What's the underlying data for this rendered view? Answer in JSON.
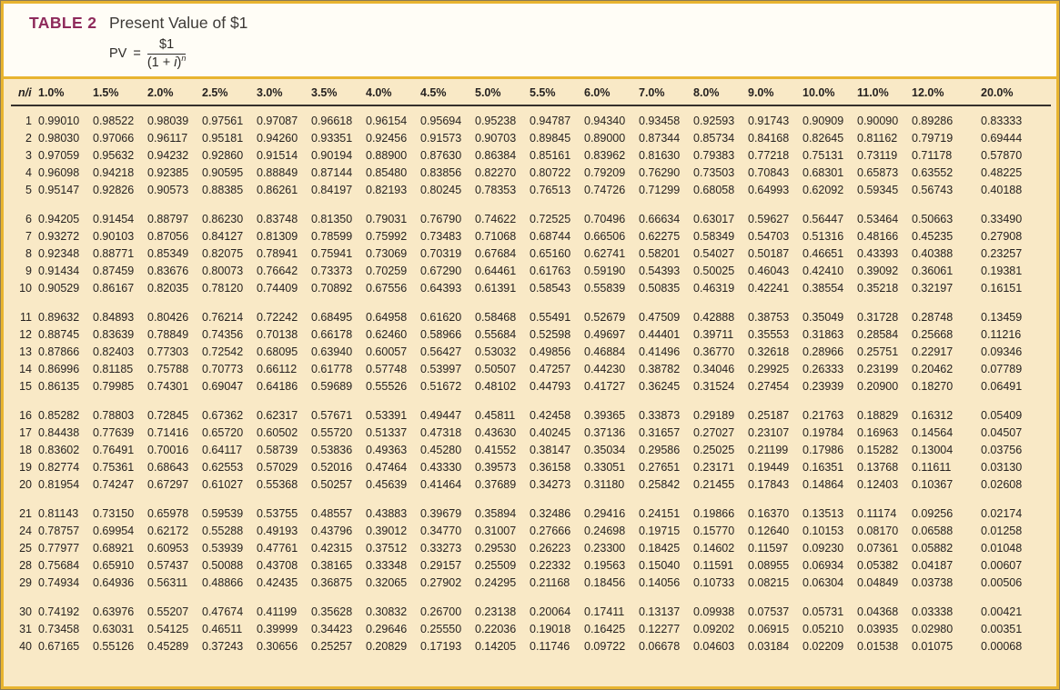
{
  "header": {
    "table_label": "TABLE 2",
    "title": "Present Value of $1",
    "formula": {
      "lhs": "PV",
      "equals": "=",
      "numerator": "$1",
      "den_open": "(1 + ",
      "den_var": "i",
      "den_close": ")",
      "exponent": "n"
    }
  },
  "colors": {
    "gold_border": "#e8b430",
    "table_bg": "#f9e9c6",
    "title_bg": "#fffdf6",
    "label_color": "#8e2a5b",
    "text_color": "#262220"
  },
  "table": {
    "corner_header": "n/i",
    "rate_columns": [
      "1.0%",
      "1.5%",
      "2.0%",
      "2.5%",
      "3.0%",
      "3.5%",
      "4.0%",
      "4.5%",
      "5.0%",
      "5.5%",
      "6.0%",
      "7.0%",
      "8.0%",
      "9.0%",
      "10.0%",
      "11.0%",
      "12.0%",
      "20.0%"
    ],
    "groups": [
      {
        "rows": [
          {
            "n": "1",
            "values": [
              "0.99010",
              "0.98522",
              "0.98039",
              "0.97561",
              "0.97087",
              "0.96618",
              "0.96154",
              "0.95694",
              "0.95238",
              "0.94787",
              "0.94340",
              "0.93458",
              "0.92593",
              "0.91743",
              "0.90909",
              "0.90090",
              "0.89286",
              "0.83333"
            ]
          },
          {
            "n": "2",
            "values": [
              "0.98030",
              "0.97066",
              "0.96117",
              "0.95181",
              "0.94260",
              "0.93351",
              "0.92456",
              "0.91573",
              "0.90703",
              "0.89845",
              "0.89000",
              "0.87344",
              "0.85734",
              "0.84168",
              "0.82645",
              "0.81162",
              "0.79719",
              "0.69444"
            ]
          },
          {
            "n": "3",
            "values": [
              "0.97059",
              "0.95632",
              "0.94232",
              "0.92860",
              "0.91514",
              "0.90194",
              "0.88900",
              "0.87630",
              "0.86384",
              "0.85161",
              "0.83962",
              "0.81630",
              "0.79383",
              "0.77218",
              "0.75131",
              "0.73119",
              "0.71178",
              "0.57870"
            ]
          },
          {
            "n": "4",
            "values": [
              "0.96098",
              "0.94218",
              "0.92385",
              "0.90595",
              "0.88849",
              "0.87144",
              "0.85480",
              "0.83856",
              "0.82270",
              "0.80722",
              "0.79209",
              "0.76290",
              "0.73503",
              "0.70843",
              "0.68301",
              "0.65873",
              "0.63552",
              "0.48225"
            ]
          },
          {
            "n": "5",
            "values": [
              "0.95147",
              "0.92826",
              "0.90573",
              "0.88385",
              "0.86261",
              "0.84197",
              "0.82193",
              "0.80245",
              "0.78353",
              "0.76513",
              "0.74726",
              "0.71299",
              "0.68058",
              "0.64993",
              "0.62092",
              "0.59345",
              "0.56743",
              "0.40188"
            ]
          }
        ]
      },
      {
        "rows": [
          {
            "n": "6",
            "values": [
              "0.94205",
              "0.91454",
              "0.88797",
              "0.86230",
              "0.83748",
              "0.81350",
              "0.79031",
              "0.76790",
              "0.74622",
              "0.72525",
              "0.70496",
              "0.66634",
              "0.63017",
              "0.59627",
              "0.56447",
              "0.53464",
              "0.50663",
              "0.33490"
            ]
          },
          {
            "n": "7",
            "values": [
              "0.93272",
              "0.90103",
              "0.87056",
              "0.84127",
              "0.81309",
              "0.78599",
              "0.75992",
              "0.73483",
              "0.71068",
              "0.68744",
              "0.66506",
              "0.62275",
              "0.58349",
              "0.54703",
              "0.51316",
              "0.48166",
              "0.45235",
              "0.27908"
            ]
          },
          {
            "n": "8",
            "values": [
              "0.92348",
              "0.88771",
              "0.85349",
              "0.82075",
              "0.78941",
              "0.75941",
              "0.73069",
              "0.70319",
              "0.67684",
              "0.65160",
              "0.62741",
              "0.58201",
              "0.54027",
              "0.50187",
              "0.46651",
              "0.43393",
              "0.40388",
              "0.23257"
            ]
          },
          {
            "n": "9",
            "values": [
              "0.91434",
              "0.87459",
              "0.83676",
              "0.80073",
              "0.76642",
              "0.73373",
              "0.70259",
              "0.67290",
              "0.64461",
              "0.61763",
              "0.59190",
              "0.54393",
              "0.50025",
              "0.46043",
              "0.42410",
              "0.39092",
              "0.36061",
              "0.19381"
            ]
          },
          {
            "n": "10",
            "values": [
              "0.90529",
              "0.86167",
              "0.82035",
              "0.78120",
              "0.74409",
              "0.70892",
              "0.67556",
              "0.64393",
              "0.61391",
              "0.58543",
              "0.55839",
              "0.50835",
              "0.46319",
              "0.42241",
              "0.38554",
              "0.35218",
              "0.32197",
              "0.16151"
            ]
          }
        ]
      },
      {
        "rows": [
          {
            "n": "11",
            "values": [
              "0.89632",
              "0.84893",
              "0.80426",
              "0.76214",
              "0.72242",
              "0.68495",
              "0.64958",
              "0.61620",
              "0.58468",
              "0.55491",
              "0.52679",
              "0.47509",
              "0.42888",
              "0.38753",
              "0.35049",
              "0.31728",
              "0.28748",
              "0.13459"
            ]
          },
          {
            "n": "12",
            "values": [
              "0.88745",
              "0.83639",
              "0.78849",
              "0.74356",
              "0.70138",
              "0.66178",
              "0.62460",
              "0.58966",
              "0.55684",
              "0.52598",
              "0.49697",
              "0.44401",
              "0.39711",
              "0.35553",
              "0.31863",
              "0.28584",
              "0.25668",
              "0.11216"
            ]
          },
          {
            "n": "13",
            "values": [
              "0.87866",
              "0.82403",
              "0.77303",
              "0.72542",
              "0.68095",
              "0.63940",
              "0.60057",
              "0.56427",
              "0.53032",
              "0.49856",
              "0.46884",
              "0.41496",
              "0.36770",
              "0.32618",
              "0.28966",
              "0.25751",
              "0.22917",
              "0.09346"
            ]
          },
          {
            "n": "14",
            "values": [
              "0.86996",
              "0.81185",
              "0.75788",
              "0.70773",
              "0.66112",
              "0.61778",
              "0.57748",
              "0.53997",
              "0.50507",
              "0.47257",
              "0.44230",
              "0.38782",
              "0.34046",
              "0.29925",
              "0.26333",
              "0.23199",
              "0.20462",
              "0.07789"
            ]
          },
          {
            "n": "15",
            "values": [
              "0.86135",
              "0.79985",
              "0.74301",
              "0.69047",
              "0.64186",
              "0.59689",
              "0.55526",
              "0.51672",
              "0.48102",
              "0.44793",
              "0.41727",
              "0.36245",
              "0.31524",
              "0.27454",
              "0.23939",
              "0.20900",
              "0.18270",
              "0.06491"
            ]
          }
        ]
      },
      {
        "rows": [
          {
            "n": "16",
            "values": [
              "0.85282",
              "0.78803",
              "0.72845",
              "0.67362",
              "0.62317",
              "0.57671",
              "0.53391",
              "0.49447",
              "0.45811",
              "0.42458",
              "0.39365",
              "0.33873",
              "0.29189",
              "0.25187",
              "0.21763",
              "0.18829",
              "0.16312",
              "0.05409"
            ]
          },
          {
            "n": "17",
            "values": [
              "0.84438",
              "0.77639",
              "0.71416",
              "0.65720",
              "0.60502",
              "0.55720",
              "0.51337",
              "0.47318",
              "0.43630",
              "0.40245",
              "0.37136",
              "0.31657",
              "0.27027",
              "0.23107",
              "0.19784",
              "0.16963",
              "0.14564",
              "0.04507"
            ]
          },
          {
            "n": "18",
            "values": [
              "0.83602",
              "0.76491",
              "0.70016",
              "0.64117",
              "0.58739",
              "0.53836",
              "0.49363",
              "0.45280",
              "0.41552",
              "0.38147",
              "0.35034",
              "0.29586",
              "0.25025",
              "0.21199",
              "0.17986",
              "0.15282",
              "0.13004",
              "0.03756"
            ]
          },
          {
            "n": "19",
            "values": [
              "0.82774",
              "0.75361",
              "0.68643",
              "0.62553",
              "0.57029",
              "0.52016",
              "0.47464",
              "0.43330",
              "0.39573",
              "0.36158",
              "0.33051",
              "0.27651",
              "0.23171",
              "0.19449",
              "0.16351",
              "0.13768",
              "0.11611",
              "0.03130"
            ]
          },
          {
            "n": "20",
            "values": [
              "0.81954",
              "0.74247",
              "0.67297",
              "0.61027",
              "0.55368",
              "0.50257",
              "0.45639",
              "0.41464",
              "0.37689",
              "0.34273",
              "0.31180",
              "0.25842",
              "0.21455",
              "0.17843",
              "0.14864",
              "0.12403",
              "0.10367",
              "0.02608"
            ]
          }
        ]
      },
      {
        "rows": [
          {
            "n": "21",
            "values": [
              "0.81143",
              "0.73150",
              "0.65978",
              "0.59539",
              "0.53755",
              "0.48557",
              "0.43883",
              "0.39679",
              "0.35894",
              "0.32486",
              "0.29416",
              "0.24151",
              "0.19866",
              "0.16370",
              "0.13513",
              "0.11174",
              "0.09256",
              "0.02174"
            ]
          },
          {
            "n": "24",
            "values": [
              "0.78757",
              "0.69954",
              "0.62172",
              "0.55288",
              "0.49193",
              "0.43796",
              "0.39012",
              "0.34770",
              "0.31007",
              "0.27666",
              "0.24698",
              "0.19715",
              "0.15770",
              "0.12640",
              "0.10153",
              "0.08170",
              "0.06588",
              "0.01258"
            ]
          },
          {
            "n": "25",
            "values": [
              "0.77977",
              "0.68921",
              "0.60953",
              "0.53939",
              "0.47761",
              "0.42315",
              "0.37512",
              "0.33273",
              "0.29530",
              "0.26223",
              "0.23300",
              "0.18425",
              "0.14602",
              "0.11597",
              "0.09230",
              "0.07361",
              "0.05882",
              "0.01048"
            ]
          },
          {
            "n": "28",
            "values": [
              "0.75684",
              "0.65910",
              "0.57437",
              "0.50088",
              "0.43708",
              "0.38165",
              "0.33348",
              "0.29157",
              "0.25509",
              "0.22332",
              "0.19563",
              "0.15040",
              "0.11591",
              "0.08955",
              "0.06934",
              "0.05382",
              "0.04187",
              "0.00607"
            ]
          },
          {
            "n": "29",
            "values": [
              "0.74934",
              "0.64936",
              "0.56311",
              "0.48866",
              "0.42435",
              "0.36875",
              "0.32065",
              "0.27902",
              "0.24295",
              "0.21168",
              "0.18456",
              "0.14056",
              "0.10733",
              "0.08215",
              "0.06304",
              "0.04849",
              "0.03738",
              "0.00506"
            ]
          }
        ]
      },
      {
        "rows": [
          {
            "n": "30",
            "values": [
              "0.74192",
              "0.63976",
              "0.55207",
              "0.47674",
              "0.41199",
              "0.35628",
              "0.30832",
              "0.26700",
              "0.23138",
              "0.20064",
              "0.17411",
              "0.13137",
              "0.09938",
              "0.07537",
              "0.05731",
              "0.04368",
              "0.03338",
              "0.00421"
            ]
          },
          {
            "n": "31",
            "values": [
              "0.73458",
              "0.63031",
              "0.54125",
              "0.46511",
              "0.39999",
              "0.34423",
              "0.29646",
              "0.25550",
              "0.22036",
              "0.19018",
              "0.16425",
              "0.12277",
              "0.09202",
              "0.06915",
              "0.05210",
              "0.03935",
              "0.02980",
              "0.00351"
            ]
          },
          {
            "n": "40",
            "values": [
              "0.67165",
              "0.55126",
              "0.45289",
              "0.37243",
              "0.30656",
              "0.25257",
              "0.20829",
              "0.17193",
              "0.14205",
              "0.11746",
              "0.09722",
              "0.06678",
              "0.04603",
              "0.03184",
              "0.02209",
              "0.01538",
              "0.01075",
              "0.00068"
            ]
          }
        ]
      }
    ]
  }
}
